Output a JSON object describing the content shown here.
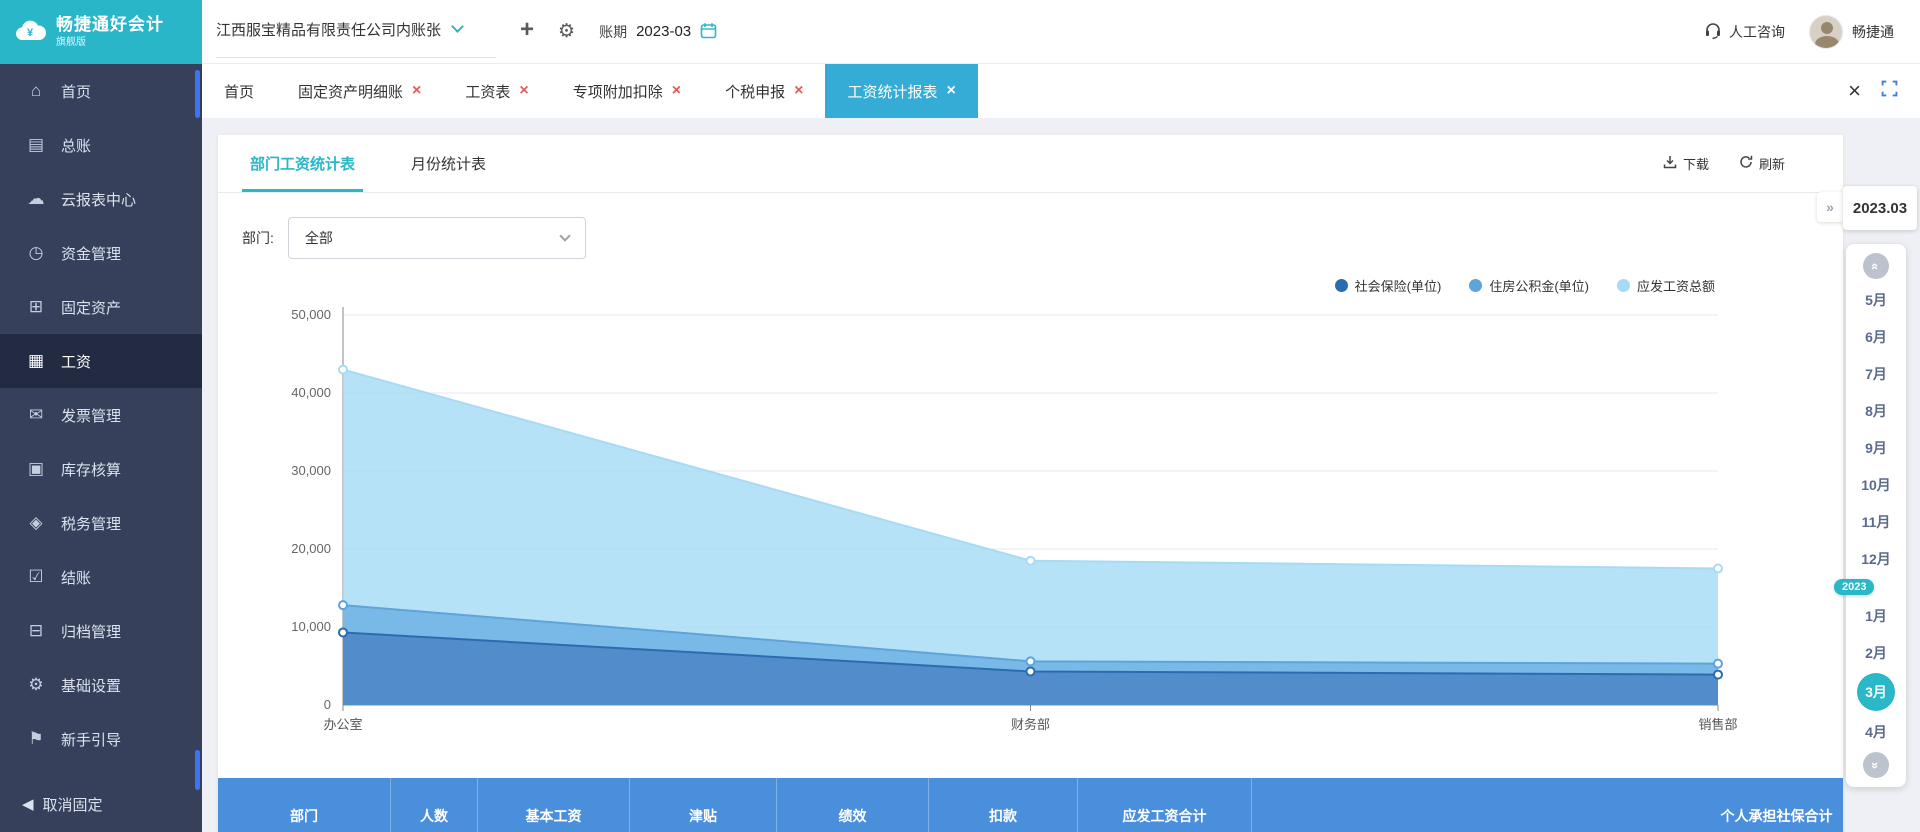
{
  "brand": {
    "name": "畅捷通好会计",
    "edition": "旗舰版"
  },
  "topbar": {
    "company": "江西服宝精品有限责任公司内账张",
    "period_label": "账期",
    "period_value": "2023-03",
    "support_label": "人工咨询",
    "username": "畅捷通"
  },
  "sidebar": {
    "items": [
      {
        "label": "首页",
        "icon": "home-icon",
        "glyph": "⌂",
        "active": false
      },
      {
        "label": "总账",
        "icon": "ledger-icon",
        "glyph": "▤",
        "active": false
      },
      {
        "label": "云报表中心",
        "icon": "cloud-report-icon",
        "glyph": "☁",
        "active": false
      },
      {
        "label": "资金管理",
        "icon": "funds-icon",
        "glyph": "◷",
        "active": false
      },
      {
        "label": "固定资产",
        "icon": "fixed-assets-icon",
        "glyph": "⊞",
        "active": false
      },
      {
        "label": "工资",
        "icon": "salary-icon",
        "glyph": "▦",
        "active": true
      },
      {
        "label": "发票管理",
        "icon": "invoice-icon",
        "glyph": "✉",
        "active": false
      },
      {
        "label": "库存核算",
        "icon": "inventory-icon",
        "glyph": "▣",
        "active": false
      },
      {
        "label": "税务管理",
        "icon": "tax-icon",
        "glyph": "◈",
        "active": false
      },
      {
        "label": "结账",
        "icon": "closing-icon",
        "glyph": "☑",
        "active": false
      },
      {
        "label": "归档管理",
        "icon": "archive-icon",
        "glyph": "⊟",
        "active": false
      },
      {
        "label": "基础设置",
        "icon": "settings-icon",
        "glyph": "⚙",
        "active": false
      },
      {
        "label": "新手引导",
        "icon": "guide-icon",
        "glyph": "⚑",
        "active": false
      }
    ],
    "pin_label": "取消固定"
  },
  "nav_tabs": [
    {
      "label": "首页",
      "closable": false,
      "active": false
    },
    {
      "label": "固定资产明细账",
      "closable": true,
      "active": false
    },
    {
      "label": "工资表",
      "closable": true,
      "active": false
    },
    {
      "label": "专项附加扣除",
      "closable": true,
      "active": false
    },
    {
      "label": "个税申报",
      "closable": true,
      "active": false
    },
    {
      "label": "工资统计报表",
      "closable": true,
      "active": true
    }
  ],
  "report": {
    "view_tabs": [
      {
        "label": "部门工资统计表",
        "active": true
      },
      {
        "label": "月份统计表",
        "active": false
      }
    ],
    "download_label": "下载",
    "refresh_label": "刷新",
    "filter_label": "部门:",
    "filter_value": "全部"
  },
  "chart_data": {
    "type": "area",
    "categories": [
      "办公室",
      "财务部",
      "销售部"
    ],
    "series": [
      {
        "name": "社会保险(单位)",
        "color": "#2b6cb0",
        "fill": "#4b84c4",
        "values": [
          9300,
          4300,
          3900
        ]
      },
      {
        "name": "住房公积金(单位)",
        "color": "#5ea3da",
        "fill": "#6db1e4",
        "values": [
          12800,
          5600,
          5300
        ]
      },
      {
        "name": "应发工资总额",
        "color": "#a6daf5",
        "fill": "#a9ddf6",
        "values": [
          43000,
          18500,
          17500
        ]
      }
    ],
    "ylim": [
      0,
      50000
    ],
    "ytick_step": 10000,
    "grid": true,
    "legend_position": "top-right"
  },
  "salary_table": {
    "headers": [
      "部门",
      "人数",
      "基本工资",
      "津贴",
      "绩效",
      "扣款",
      "应发工资合计",
      "个人承担社保合计"
    ],
    "header_color": "#4a8fdc"
  },
  "month_picker": {
    "header": "2023.03",
    "year_badge": "2023",
    "months": [
      "5月",
      "6月",
      "7月",
      "8月",
      "9月",
      "10月",
      "11月",
      "12月",
      "1月",
      "2月",
      "3月",
      "4月"
    ],
    "active_month": "3月",
    "accent_color": "#2ab7c8"
  }
}
